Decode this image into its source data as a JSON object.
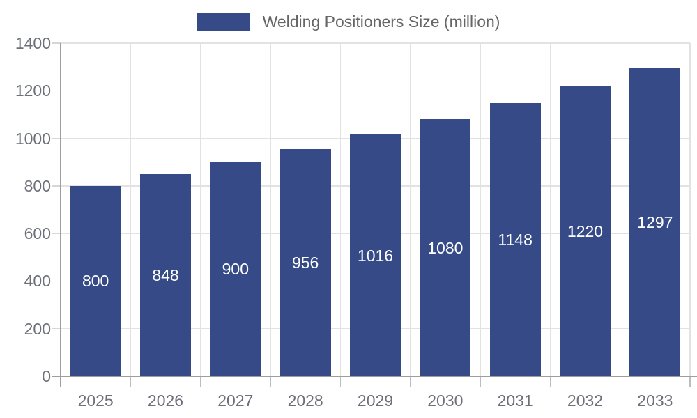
{
  "chart_data": {
    "type": "bar",
    "title": "Welding Positioners Size (million)",
    "legend": {
      "position": "top",
      "entries": [
        "Welding Positioners Size (million)"
      ]
    },
    "categories": [
      "2025",
      "2026",
      "2027",
      "2028",
      "2029",
      "2030",
      "2031",
      "2032",
      "2033"
    ],
    "values": [
      800,
      848,
      900,
      956,
      1016,
      1080,
      1148,
      1220,
      1297
    ],
    "bar_labels": [
      "800",
      "848",
      "900",
      "956",
      "1016",
      "1080",
      "1148",
      "1220",
      "1297"
    ],
    "xlabel": "",
    "ylabel": "",
    "ylim": [
      0,
      1400
    ],
    "yticks": [
      0,
      200,
      400,
      600,
      800,
      1000,
      1200,
      1400
    ],
    "grid": true,
    "colors": {
      "bar": "#354a86",
      "grid": "#e2e2e2",
      "axis": "#9e9e9e",
      "tick_text": "#6e7079",
      "legend_text": "#666666",
      "bar_label_text": "#ffffff",
      "background": "#ffffff"
    }
  }
}
